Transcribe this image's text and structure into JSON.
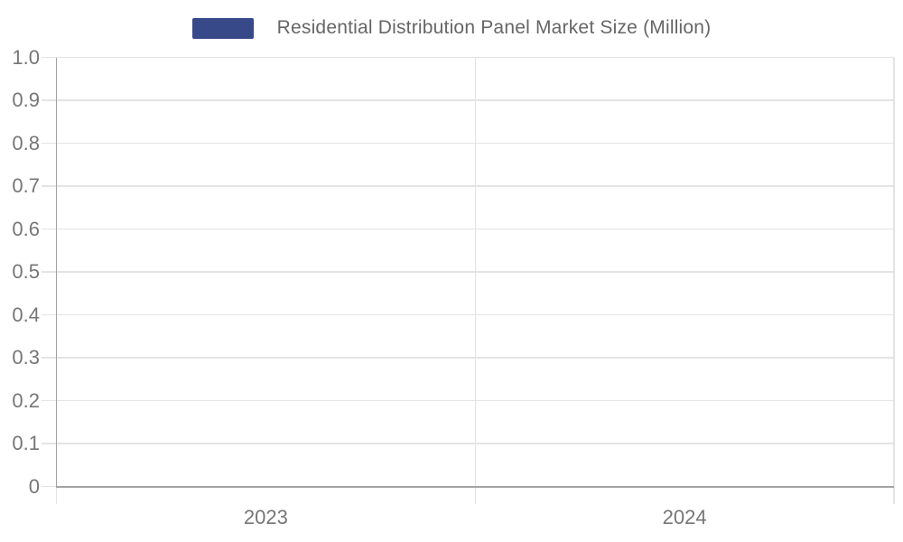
{
  "legend": {
    "label": "Residential Distribution Panel Market Size (Million)",
    "swatch_color": "#38498A"
  },
  "x_axis": {
    "labels": [
      "2023",
      "2024"
    ]
  },
  "y_axis": {
    "labels": [
      "1.0",
      "0.9",
      "0.8",
      "0.7",
      "0.6",
      "0.5",
      "0.4",
      "0.3",
      "0.2",
      "0.1",
      "0"
    ]
  },
  "chart_data": {
    "type": "bar",
    "title": "Residential Distribution Panel Market Size (Million)",
    "categories": [
      "2023",
      "2024"
    ],
    "series": [
      {
        "name": "Residential Distribution Panel Market Size (Million)",
        "values": [
          null,
          null
        ]
      }
    ],
    "ylim": [
      0,
      1.0
    ],
    "ytick_step": 0.1,
    "grid": true,
    "legend_position": "top-center",
    "note": "axes and gridlines only; no bars are rendered in the plot area"
  },
  "colors": {
    "background": "#ffffff",
    "legend_swatch": "#38498A",
    "legend_text": "#666666",
    "axis_text": "#767676",
    "axis_line": "#a3a3a3",
    "grid_line": "#e4e4e4"
  }
}
